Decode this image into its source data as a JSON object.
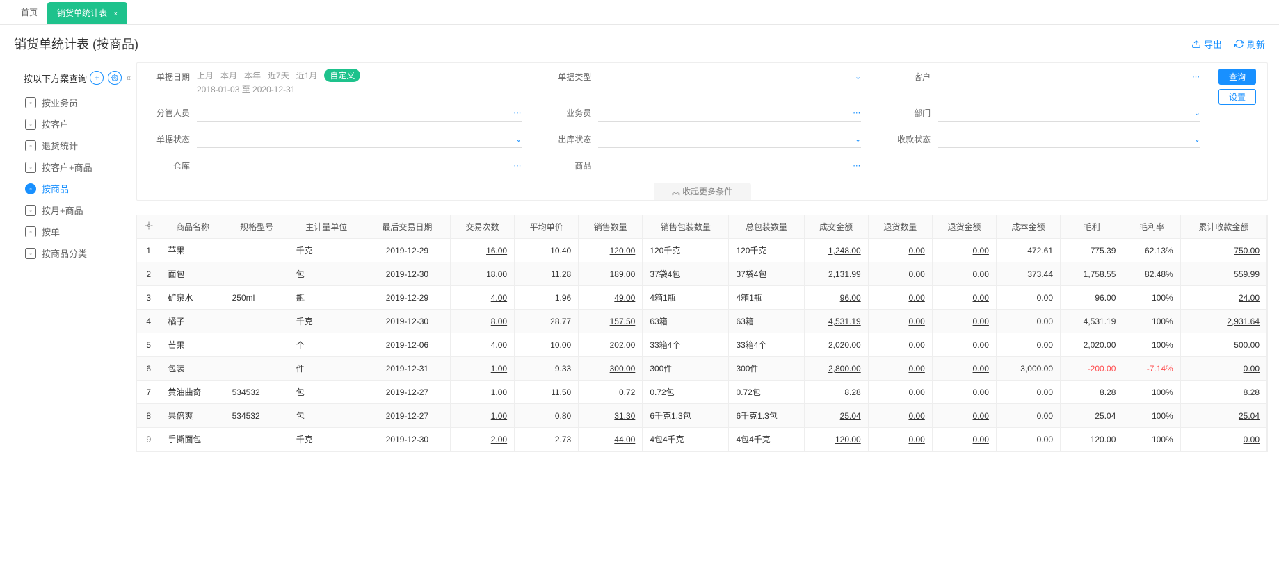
{
  "tabs": {
    "home": "首页",
    "active": "销货单统计表"
  },
  "page": {
    "title": "销货单统计表 (按商品)",
    "export": "导出",
    "refresh": "刷新"
  },
  "sidebar": {
    "header": "按以下方案查询",
    "items": [
      {
        "label": "按业务员",
        "active": false
      },
      {
        "label": "按客户",
        "active": false
      },
      {
        "label": "退货统计",
        "active": false
      },
      {
        "label": "按客户+商品",
        "active": false
      },
      {
        "label": "按商品",
        "active": true
      },
      {
        "label": "按月+商品",
        "active": false
      },
      {
        "label": "按单",
        "active": false
      },
      {
        "label": "按商品分类",
        "active": false
      }
    ]
  },
  "filters": {
    "date_label": "单据日期",
    "date_shortcuts": [
      "上月",
      "本月",
      "本年",
      "近7天",
      "近1月"
    ],
    "date_custom": "自定义",
    "date_range": "2018-01-03 至 2020-12-31",
    "row1": [
      {
        "label": "单据类型",
        "type": "dropdown"
      },
      {
        "label": "客户",
        "type": "more"
      }
    ],
    "row2": [
      {
        "label": "分管人员",
        "type": "more"
      },
      {
        "label": "业务员",
        "type": "more"
      },
      {
        "label": "部门",
        "type": "dropdown"
      }
    ],
    "row3": [
      {
        "label": "单据状态",
        "type": "dropdown"
      },
      {
        "label": "出库状态",
        "type": "dropdown"
      },
      {
        "label": "收款状态",
        "type": "dropdown"
      }
    ],
    "row4": [
      {
        "label": "仓库",
        "type": "more"
      },
      {
        "label": "商品",
        "type": "more"
      }
    ],
    "query_btn": "查询",
    "settings_btn": "设置",
    "collapse_text": "收起更多条件"
  },
  "table": {
    "columns": [
      "",
      "商品名称",
      "规格型号",
      "主计量单位",
      "最后交易日期",
      "交易次数",
      "平均单价",
      "销售数量",
      "销售包装数量",
      "总包装数量",
      "成交金额",
      "退货数量",
      "退货金额",
      "成本金额",
      "毛利",
      "毛利率",
      "累计收款金额"
    ],
    "rows": [
      {
        "n": "1",
        "name": "苹果",
        "spec": "",
        "unit": "千克",
        "date": "2019-12-29",
        "count": "16.00",
        "price": "10.40",
        "qty": "120.00",
        "pkg": "120千克",
        "tpkg": "120千克",
        "amt": "1,248.00",
        "rqty": "0.00",
        "ramt": "0.00",
        "cost": "472.61",
        "profit": "775.39",
        "rate": "62.13%",
        "recv": "750.00"
      },
      {
        "n": "2",
        "name": "面包",
        "spec": "",
        "unit": "包",
        "date": "2019-12-30",
        "count": "18.00",
        "price": "11.28",
        "qty": "189.00",
        "pkg": "37袋4包",
        "tpkg": "37袋4包",
        "amt": "2,131.99",
        "rqty": "0.00",
        "ramt": "0.00",
        "cost": "373.44",
        "profit": "1,758.55",
        "rate": "82.48%",
        "recv": "559.99"
      },
      {
        "n": "3",
        "name": "矿泉水",
        "spec": "250ml",
        "unit": "瓶",
        "date": "2019-12-29",
        "count": "4.00",
        "price": "1.96",
        "qty": "49.00",
        "pkg": "4箱1瓶",
        "tpkg": "4箱1瓶",
        "amt": "96.00",
        "rqty": "0.00",
        "ramt": "0.00",
        "cost": "0.00",
        "profit": "96.00",
        "rate": "100%",
        "recv": "24.00"
      },
      {
        "n": "4",
        "name": "橘子",
        "spec": "",
        "unit": "千克",
        "date": "2019-12-30",
        "count": "8.00",
        "price": "28.77",
        "qty": "157.50",
        "pkg": "63箱",
        "tpkg": "63箱",
        "amt": "4,531.19",
        "rqty": "0.00",
        "ramt": "0.00",
        "cost": "0.00",
        "profit": "4,531.19",
        "rate": "100%",
        "recv": "2,931.64"
      },
      {
        "n": "5",
        "name": "芒果",
        "spec": "",
        "unit": "个",
        "date": "2019-12-06",
        "count": "4.00",
        "price": "10.00",
        "qty": "202.00",
        "pkg": "33箱4个",
        "tpkg": "33箱4个",
        "amt": "2,020.00",
        "rqty": "0.00",
        "ramt": "0.00",
        "cost": "0.00",
        "profit": "2,020.00",
        "rate": "100%",
        "recv": "500.00"
      },
      {
        "n": "6",
        "name": "包装",
        "spec": "",
        "unit": "件",
        "date": "2019-12-31",
        "count": "1.00",
        "price": "9.33",
        "qty": "300.00",
        "pkg": "300件",
        "tpkg": "300件",
        "amt": "2,800.00",
        "rqty": "0.00",
        "ramt": "0.00",
        "cost": "3,000.00",
        "profit": "-200.00",
        "rate": "-7.14%",
        "recv": "0.00",
        "neg": true
      },
      {
        "n": "7",
        "name": "黄油曲奇",
        "spec": "534532",
        "unit": "包",
        "date": "2019-12-27",
        "count": "1.00",
        "price": "11.50",
        "qty": "0.72",
        "pkg": "0.72包",
        "tpkg": "0.72包",
        "amt": "8.28",
        "rqty": "0.00",
        "ramt": "0.00",
        "cost": "0.00",
        "profit": "8.28",
        "rate": "100%",
        "recv": "8.28"
      },
      {
        "n": "8",
        "name": "果倍爽",
        "spec": "534532",
        "unit": "包",
        "date": "2019-12-27",
        "count": "1.00",
        "price": "0.80",
        "qty": "31.30",
        "pkg": "6千克1.3包",
        "tpkg": "6千克1.3包",
        "amt": "25.04",
        "rqty": "0.00",
        "ramt": "0.00",
        "cost": "0.00",
        "profit": "25.04",
        "rate": "100%",
        "recv": "25.04"
      },
      {
        "n": "9",
        "name": "手撕面包",
        "spec": "",
        "unit": "千克",
        "date": "2019-12-30",
        "count": "2.00",
        "price": "2.73",
        "qty": "44.00",
        "pkg": "4包4千克",
        "tpkg": "4包4千克",
        "amt": "120.00",
        "rqty": "0.00",
        "ramt": "0.00",
        "cost": "0.00",
        "profit": "120.00",
        "rate": "100%",
        "recv": "0.00"
      }
    ]
  },
  "colors": {
    "primary": "#1890ff",
    "green": "#1ec28c",
    "neg": "#ff4d4f"
  }
}
